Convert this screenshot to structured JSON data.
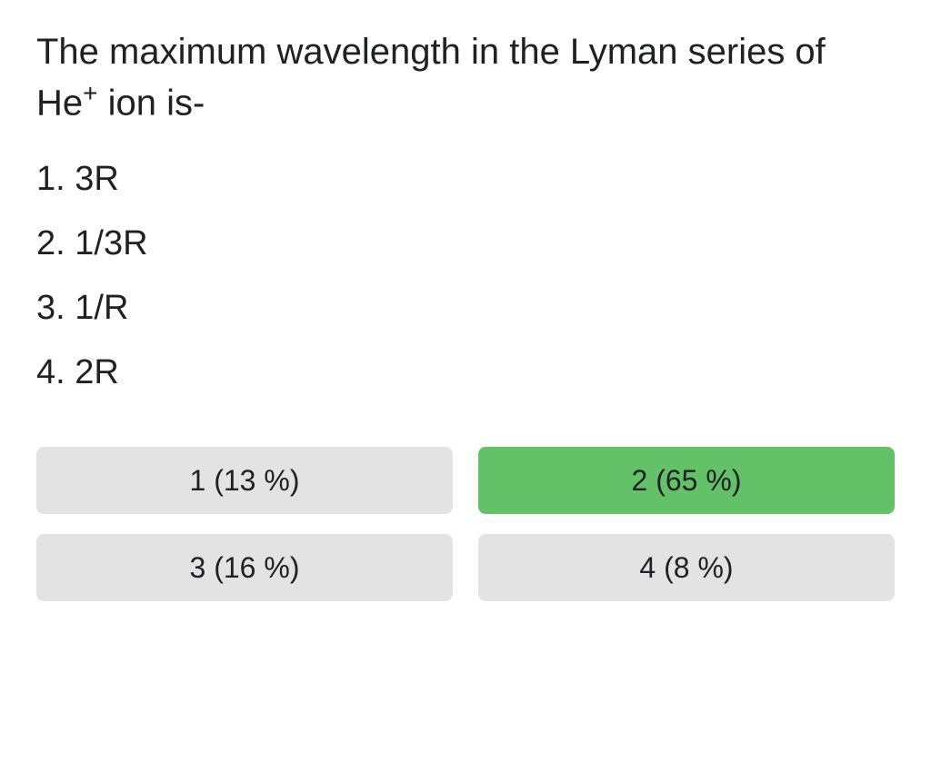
{
  "question": {
    "prefix": "The maximum wavelength in the Lyman series of He",
    "sup": "+",
    "suffix": " ion is-"
  },
  "options": [
    {
      "number": "1.",
      "text": "3R"
    },
    {
      "number": "2.",
      "text": "1/3R"
    },
    {
      "number": "3.",
      "text": "1/R"
    },
    {
      "number": "4.",
      "text": "2R"
    }
  ],
  "answers": [
    {
      "label": "1 (13 %)",
      "correct": false
    },
    {
      "label": "2 (65 %)",
      "correct": true
    },
    {
      "label": "3 (16 %)",
      "correct": false
    },
    {
      "label": "4 (8 %)",
      "correct": false
    }
  ],
  "colors": {
    "background": "#ffffff",
    "text": "#202124",
    "button_default": "#e3e3e3",
    "button_correct": "#63c167"
  },
  "typography": {
    "question_fontsize": 40,
    "option_fontsize": 38,
    "answer_fontsize": 32
  }
}
